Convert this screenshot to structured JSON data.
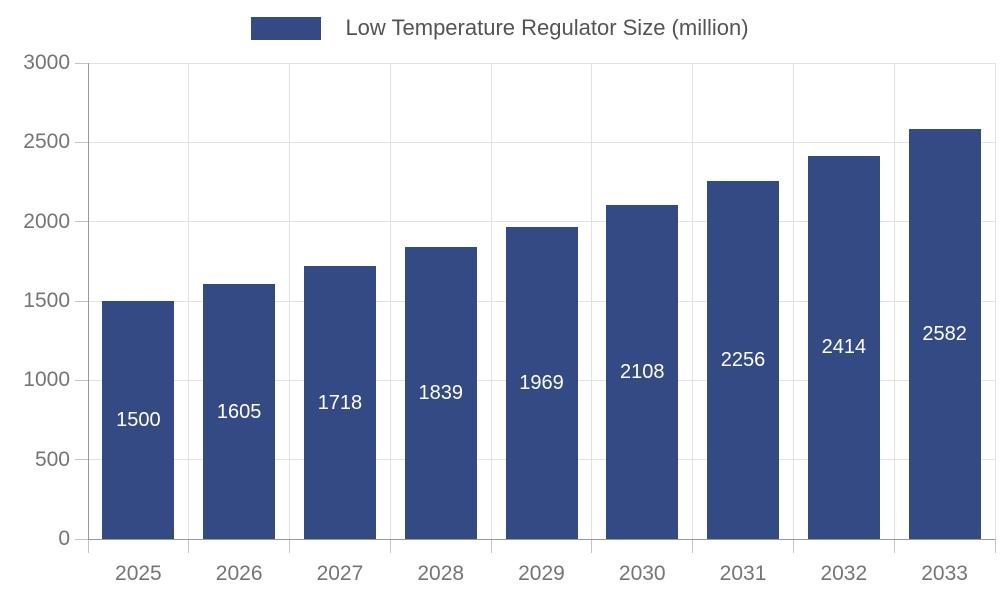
{
  "legend": {
    "label": "Low Temperature Regulator Size (million)"
  },
  "chart_data": {
    "type": "bar",
    "title": "Low Temperature Regulator Size (million)",
    "series_name": "Low Temperature Regulator Size (million)",
    "categories": [
      "2025",
      "2026",
      "2027",
      "2028",
      "2029",
      "2030",
      "2031",
      "2032",
      "2033"
    ],
    "values": [
      1500,
      1605,
      1718,
      1839,
      1969,
      2108,
      2256,
      2414,
      2582
    ],
    "xlabel": "",
    "ylabel": "",
    "ylim": [
      0,
      3000
    ],
    "yticks": [
      0,
      500,
      1000,
      1500,
      2000,
      2500,
      3000
    ],
    "grid": true,
    "legend_position": "top",
    "value_labels": "inside-middle"
  },
  "colors": {
    "bar": "#344a85",
    "grid_line": "#e2e2e2",
    "axis_line": "#999999",
    "tick_line": "#c4c4c4",
    "axis_text": "#757575",
    "legend_text": "#545454",
    "value_label": "#ffffff",
    "background": "#ffffff"
  }
}
